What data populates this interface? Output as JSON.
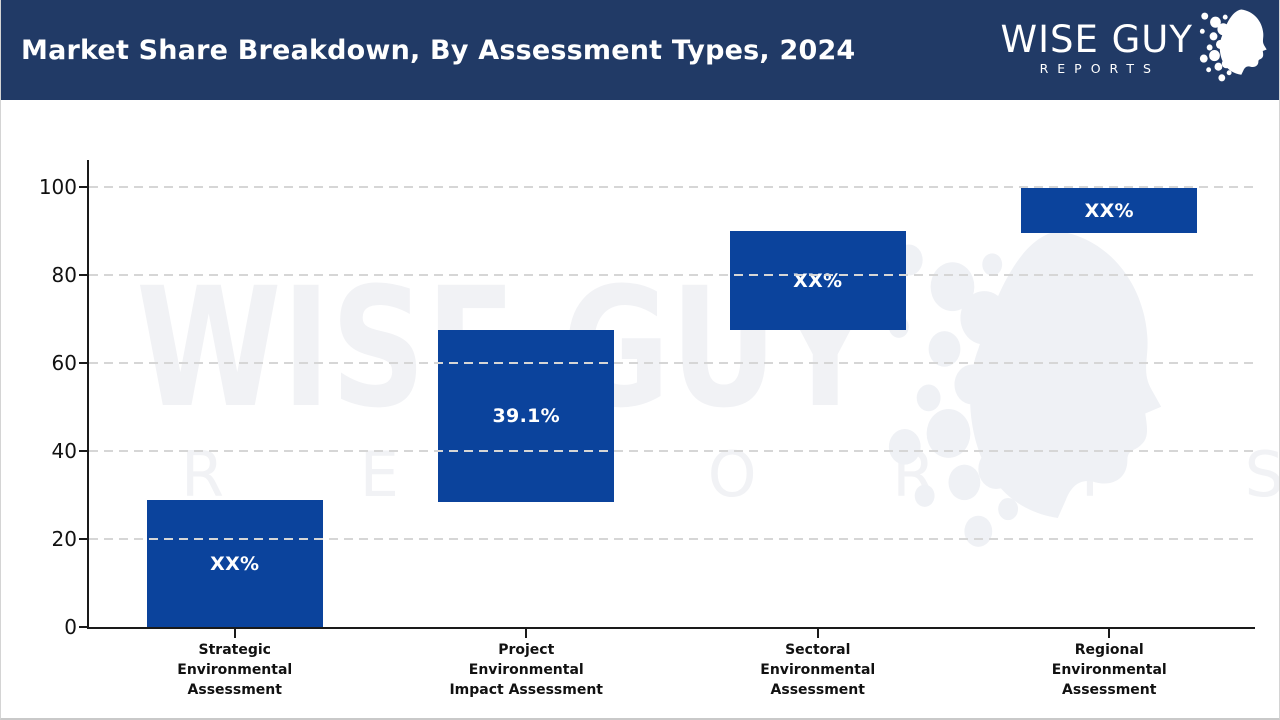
{
  "header": {
    "title": "Market Share Breakdown, By Assessment Types, 2024",
    "logo": {
      "brand": "WISE GUY",
      "sub": "REPORTS"
    }
  },
  "watermark": {
    "brand": "WISE GUY",
    "sub": "R E P O R T S"
  },
  "colors": {
    "header_bg": "#213a66",
    "bar_blue": "#0b439c",
    "axis": "#1a1a1a",
    "grid": "#d6d6d6",
    "watermark_gray": "#f1f2f5"
  },
  "chart_data": {
    "type": "bar",
    "subtype": "floating-segment-waterfall",
    "title": "Market Share Breakdown, By Assessment Types, 2024",
    "xlabel": "",
    "ylabel": "",
    "ylim": [
      0,
      105
    ],
    "yticks": [
      0,
      20,
      40,
      60,
      80,
      100
    ],
    "grid": "horizontal-dashed",
    "legend": "none",
    "bar_color": "#0b439c",
    "value_label_color": "#ffffff",
    "bars": [
      {
        "category_lines": [
          "Strategic",
          "Environmental",
          "Assessment"
        ],
        "start": 0,
        "end": 28.8,
        "label": "XX%"
      },
      {
        "category_lines": [
          "Project",
          "Environmental",
          "Impact Assessment"
        ],
        "start": 28.4,
        "end": 67.5,
        "label": "39.1%"
      },
      {
        "category_lines": [
          "Sectoral",
          "Environmental",
          "Assessment"
        ],
        "start": 67.5,
        "end": 89.9,
        "label": "XX%"
      },
      {
        "category_lines": [
          "Regional",
          "Environmental",
          "Assessment"
        ],
        "start": 89.6,
        "end": 99.7,
        "label": "XX%"
      }
    ]
  }
}
